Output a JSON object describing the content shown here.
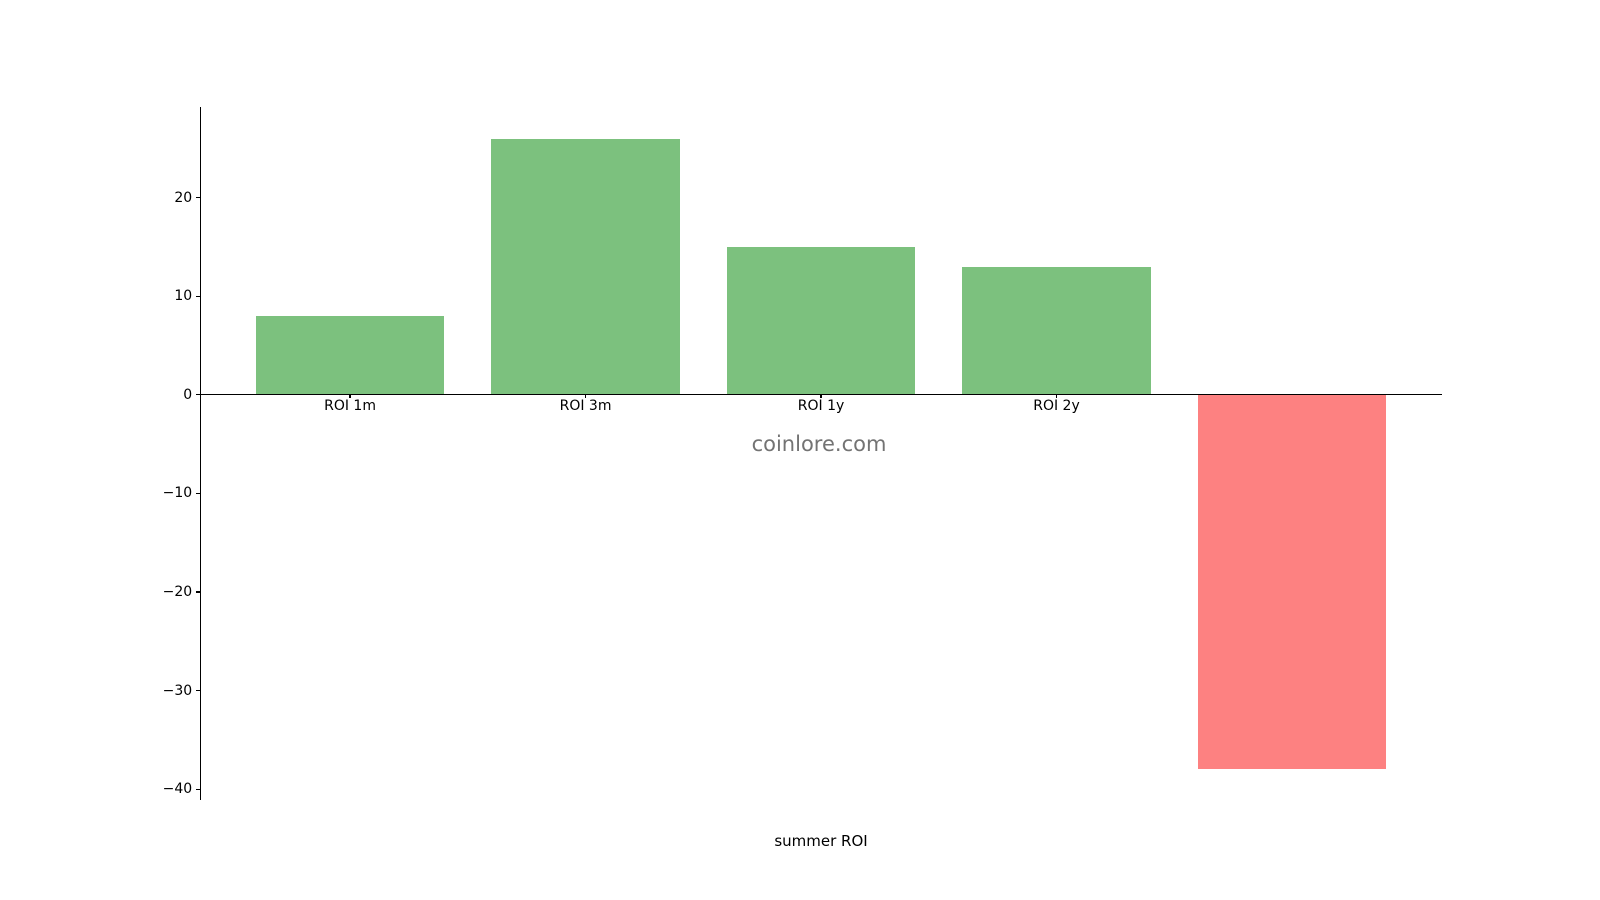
{
  "page": {
    "background_color": "#ffffff"
  },
  "watermark": {
    "text": "coinlore.com",
    "color": "#737373"
  },
  "chart_data": {
    "type": "bar",
    "title": "",
    "xlabel": "summer ROI",
    "ylabel": "",
    "categories": [
      "ROI 1m",
      "ROI 3m",
      "ROI 1y",
      "ROI 2y",
      ""
    ],
    "values": [
      8,
      26,
      15,
      13,
      -38
    ],
    "positive_color": "#7cc17e",
    "negative_color": "#fd8181",
    "bar_colors": [
      "#7cc17e",
      "#7cc17e",
      "#7cc17e",
      "#7cc17e",
      "#fd8181"
    ],
    "bar_width_fraction": 0.8,
    "ylim": [
      -41.1,
      29.2
    ],
    "xlim": [
      -0.633,
      4.637
    ],
    "yticks": [
      20,
      10,
      0,
      -10,
      -20,
      -30,
      -40
    ],
    "ytick_labels": [
      "20",
      "10",
      "0",
      "−10",
      "−20",
      "−30",
      "−40"
    ],
    "grid": false,
    "legend": null,
    "axis_color": "#000000",
    "tick_label_color": "#000000"
  }
}
